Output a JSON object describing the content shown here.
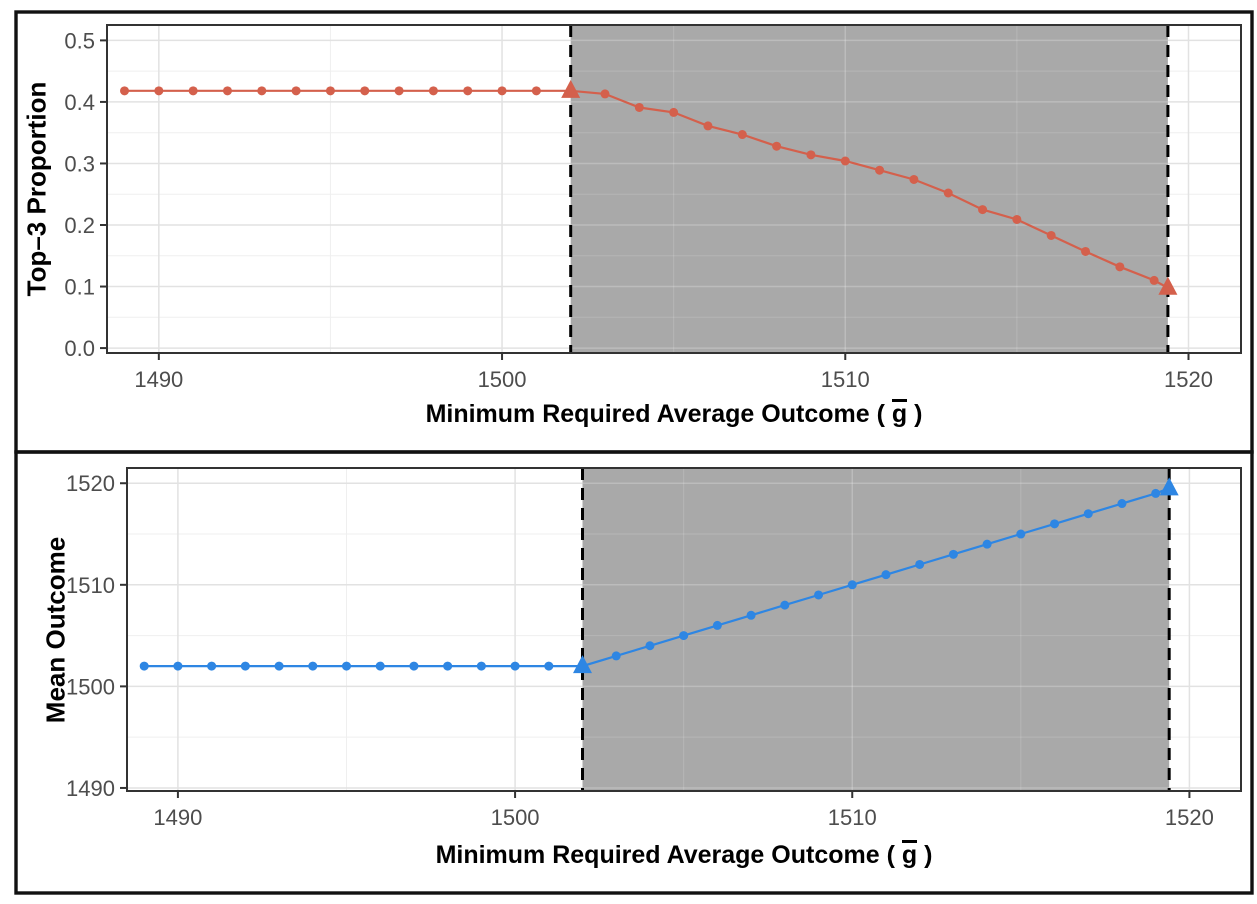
{
  "figure": {
    "background": "#ffffff",
    "outer_border_color": "#111111",
    "panel_border_color": "#333333",
    "grid_major_color": "#e2e2e2",
    "grid_minor_color": "#efefef",
    "tick_label_color": "#4d4d4d"
  },
  "chart_data": [
    {
      "type": "line",
      "panel": "top",
      "ylabel": "Top–3 Proportion",
      "xlabel_prefix": "Minimum Required Average Outcome ( ",
      "xlabel_g": "g",
      "xlabel_suffix": " )",
      "series_name": "top3-proportion",
      "series_color": "#d4604c",
      "xlim": [
        1488.49,
        1521.53
      ],
      "ylim": [
        -0.008,
        0.525
      ],
      "x_ticks": [
        [
          1490,
          "1490"
        ],
        [
          1500,
          "1500"
        ],
        [
          1510,
          "1510"
        ],
        [
          1520,
          "1520"
        ]
      ],
      "y_ticks": [
        [
          0.0,
          "0.0"
        ],
        [
          0.1,
          "0.1"
        ],
        [
          0.2,
          "0.2"
        ],
        [
          0.3,
          "0.3"
        ],
        [
          0.4,
          "0.4"
        ],
        [
          0.5,
          "0.5"
        ]
      ],
      "x_minor": [
        1495,
        1505,
        1515
      ],
      "y_minor": [
        0.05,
        0.15,
        0.25,
        0.35,
        0.45
      ],
      "shaded_region": {
        "from": 1502,
        "to": 1519.4,
        "color": "#a9a9a9"
      },
      "dashed_lines": [
        1502,
        1519.4
      ],
      "circle_points": [
        [
          1489,
          0.418
        ],
        [
          1490,
          0.418
        ],
        [
          1491,
          0.418
        ],
        [
          1492,
          0.418
        ],
        [
          1493,
          0.418
        ],
        [
          1494,
          0.418
        ],
        [
          1495,
          0.418
        ],
        [
          1496,
          0.418
        ],
        [
          1497,
          0.418
        ],
        [
          1498,
          0.418
        ],
        [
          1499,
          0.418
        ],
        [
          1500,
          0.418
        ],
        [
          1501,
          0.418
        ],
        [
          1503,
          0.413
        ],
        [
          1504,
          0.391
        ],
        [
          1505,
          0.383
        ],
        [
          1506,
          0.361
        ],
        [
          1507,
          0.347
        ],
        [
          1508,
          0.328
        ],
        [
          1509,
          0.314
        ],
        [
          1510,
          0.304
        ],
        [
          1511,
          0.289
        ],
        [
          1512,
          0.274
        ],
        [
          1513,
          0.252
        ],
        [
          1514,
          0.225
        ],
        [
          1515,
          0.209
        ],
        [
          1516,
          0.183
        ],
        [
          1517,
          0.157
        ],
        [
          1518,
          0.132
        ],
        [
          1519,
          0.11
        ]
      ],
      "triangle_points": [
        [
          1502,
          0.418
        ],
        [
          1519.4,
          0.098
        ]
      ]
    },
    {
      "type": "line",
      "panel": "bottom",
      "ylabel": "Mean Outcome",
      "xlabel_prefix": "Minimum Required Average Outcome ( ",
      "xlabel_g": "g",
      "xlabel_suffix": " )",
      "series_name": "mean-outcome",
      "series_color": "#2e86e3",
      "xlim": [
        1488.49,
        1521.53
      ],
      "ylim": [
        1489.7,
        1521.5
      ],
      "x_ticks": [
        [
          1490,
          "1490"
        ],
        [
          1500,
          "1500"
        ],
        [
          1510,
          "1510"
        ],
        [
          1520,
          "1520"
        ]
      ],
      "y_ticks": [
        [
          1490,
          "1490"
        ],
        [
          1500,
          "1500"
        ],
        [
          1510,
          "1510"
        ],
        [
          1520,
          "1520"
        ]
      ],
      "x_minor": [
        1495,
        1505,
        1515
      ],
      "y_minor": [
        1495,
        1505,
        1515
      ],
      "shaded_region": {
        "from": 1502,
        "to": 1519.4,
        "color": "#a9a9a9"
      },
      "dashed_lines": [
        1502,
        1519.4
      ],
      "circle_points": [
        [
          1489,
          1502
        ],
        [
          1490,
          1502
        ],
        [
          1491,
          1502
        ],
        [
          1492,
          1502
        ],
        [
          1493,
          1502
        ],
        [
          1494,
          1502
        ],
        [
          1495,
          1502
        ],
        [
          1496,
          1502
        ],
        [
          1497,
          1502
        ],
        [
          1498,
          1502
        ],
        [
          1499,
          1502
        ],
        [
          1500,
          1502
        ],
        [
          1501,
          1502
        ],
        [
          1503,
          1503
        ],
        [
          1504,
          1504
        ],
        [
          1505,
          1505
        ],
        [
          1506,
          1506
        ],
        [
          1507,
          1507
        ],
        [
          1508,
          1508
        ],
        [
          1509,
          1509
        ],
        [
          1510,
          1510
        ],
        [
          1511,
          1511
        ],
        [
          1512,
          1512
        ],
        [
          1513,
          1513
        ],
        [
          1514,
          1514
        ],
        [
          1515,
          1515
        ],
        [
          1516,
          1516
        ],
        [
          1517,
          1517
        ],
        [
          1518,
          1518
        ],
        [
          1519,
          1519
        ]
      ],
      "triangle_points": [
        [
          1502,
          1502
        ],
        [
          1519.4,
          1519.5
        ]
      ]
    }
  ]
}
